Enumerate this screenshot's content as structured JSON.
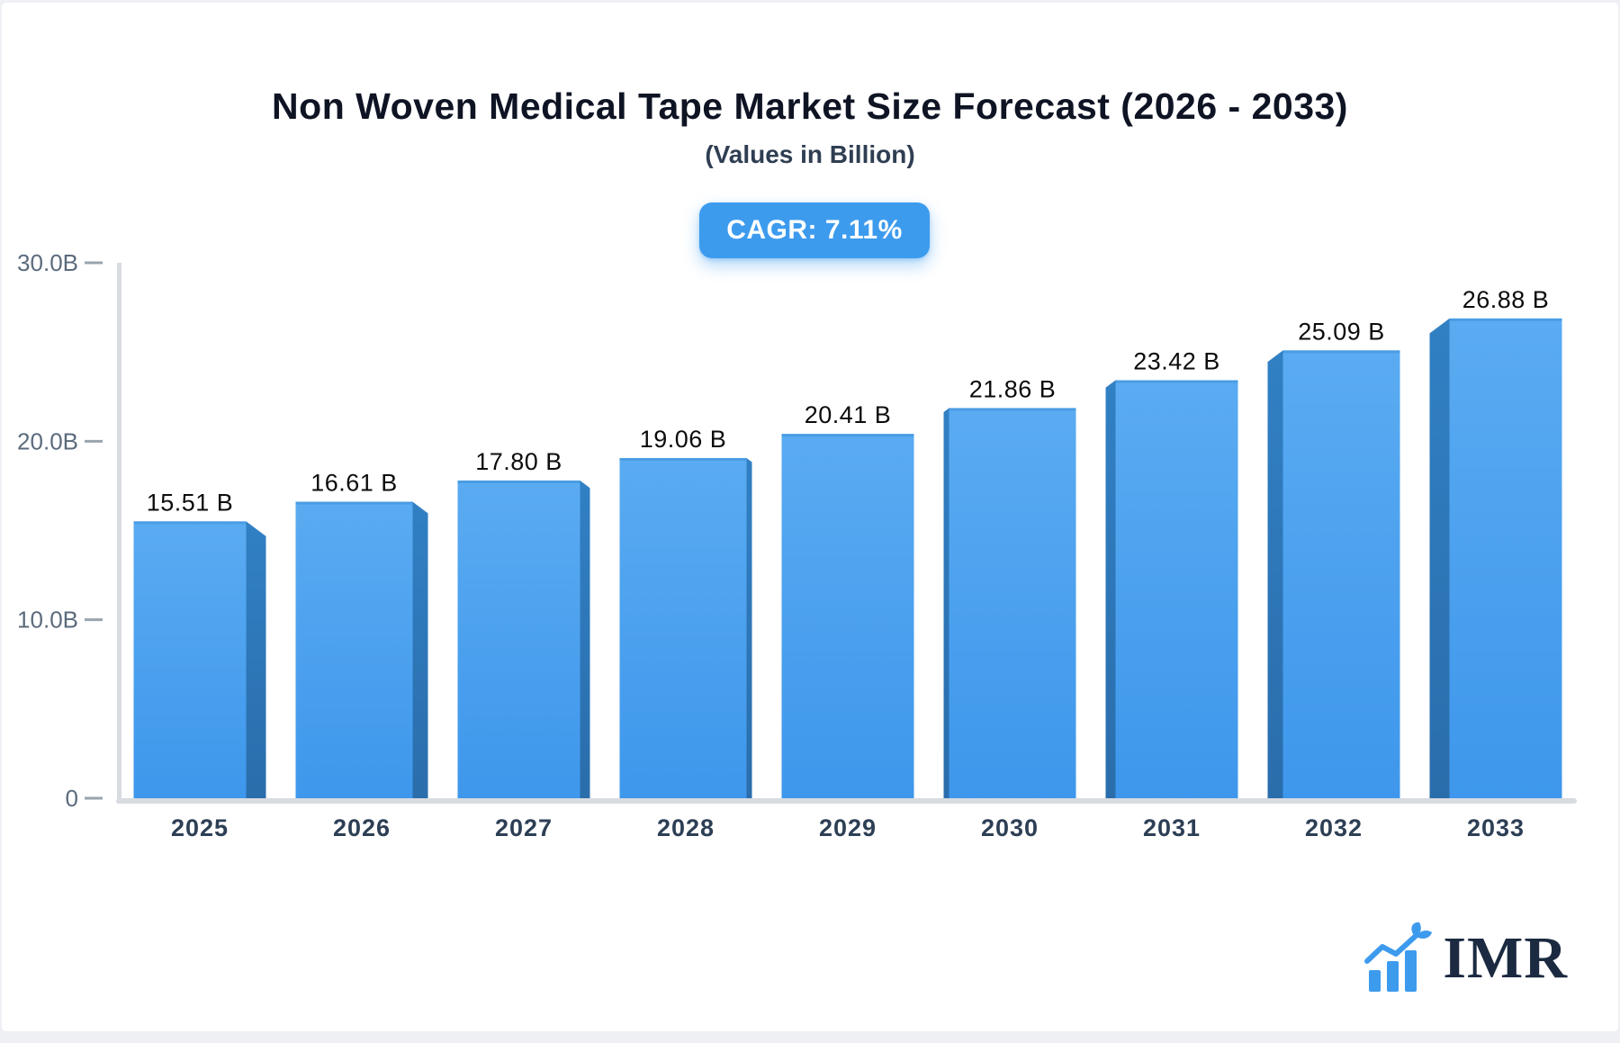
{
  "header": {
    "title": "Non Woven Medical Tape Market Size Forecast (2026 - 2033)",
    "subtitle": "(Values in Billion)"
  },
  "badge": {
    "label": "CAGR: 7.11%",
    "background": "#3d9bee",
    "text_color": "#ffffff"
  },
  "chart_data": {
    "type": "bar",
    "title": "Non Woven Medical Tape Market Size Forecast (2026 - 2033)",
    "subtitle": "(Values in Billion)",
    "cagr": "CAGR: 7.11%",
    "categories": [
      "2025",
      "2026",
      "2027",
      "2028",
      "2029",
      "2030",
      "2031",
      "2032",
      "2033"
    ],
    "values": [
      15.51,
      16.61,
      17.8,
      19.06,
      20.41,
      21.86,
      23.42,
      25.09,
      26.88
    ],
    "value_labels": [
      "15.51 B",
      "16.61 B",
      "17.80 B",
      "19.06 B",
      "20.41 B",
      "21.86 B",
      "23.42 B",
      "25.09 B",
      "26.88 B"
    ],
    "xlabel": "",
    "ylabel": "",
    "ylim": [
      0,
      30
    ],
    "yticks": [
      {
        "value": 0,
        "label": "0"
      },
      {
        "value": 10,
        "label": "10.0B"
      },
      {
        "value": 20,
        "label": "20.0B"
      },
      {
        "value": 30,
        "label": "30.0B"
      }
    ],
    "grid": false,
    "legend_position": "none",
    "style": "3d-perspective-bars",
    "colors": {
      "bar_front_top": "#5aabf1",
      "bar_front_bottom": "#3e97ec",
      "bar_front_edge": "#4a9de4",
      "bar_side_top": "#3180c4",
      "bar_side_bottom": "#2a6dab",
      "axis_line": "#d8dbe0",
      "tick_mark": "#9aa4ae",
      "y_label": "#5b6b7c",
      "x_label": "#2d3f55",
      "value_label": "#0b0c0e"
    }
  },
  "logo": {
    "text": "IMR",
    "icon": "growth-chart-leaf-icon",
    "text_color": "#1b2a40",
    "accent_color": "#3d9bee"
  }
}
